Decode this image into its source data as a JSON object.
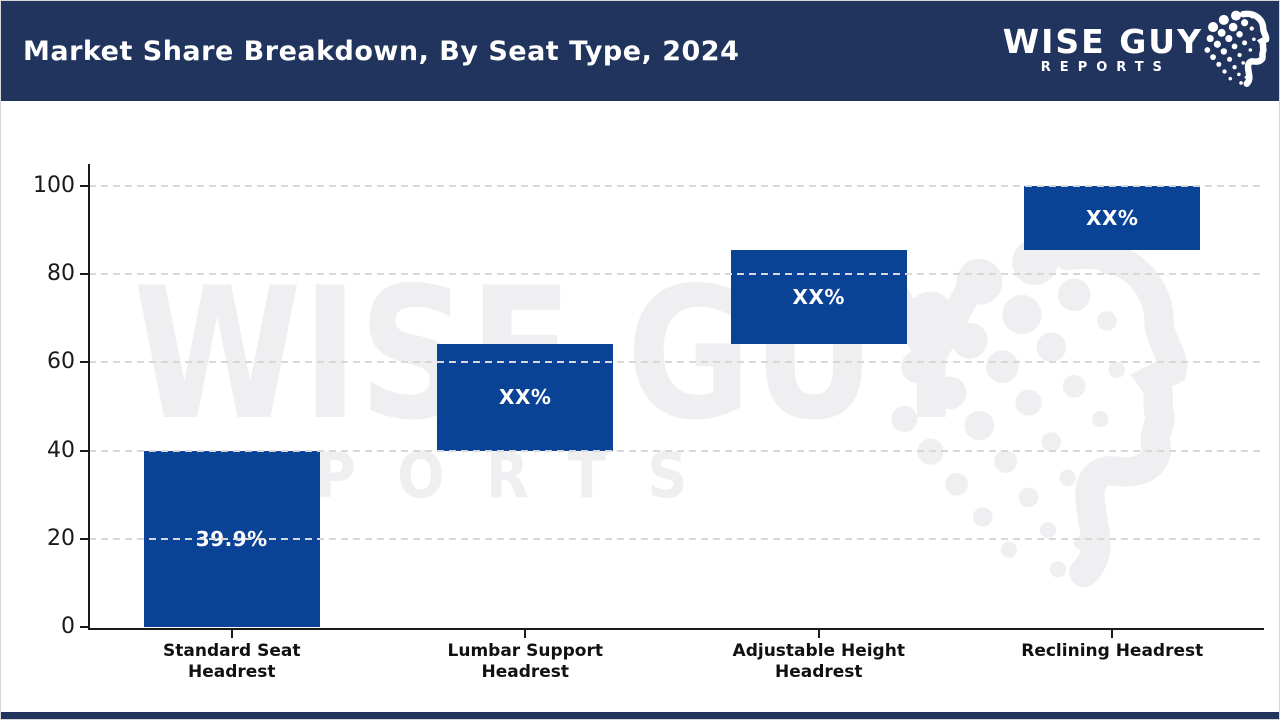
{
  "header": {
    "title": "Market Share Breakdown, By Seat Type, 2024",
    "bg_color": "#21345E",
    "logo": {
      "wordmark": "WISE GUY",
      "subtext": "REPORTS"
    }
  },
  "watermark": {
    "wordmark": "WISE GUY",
    "subtext": "REPORTS"
  },
  "chart_data": {
    "type": "bar",
    "subtype": "waterfall-floating-bars",
    "title": "Market Share Breakdown, By Seat Type, 2024",
    "categories": [
      "Standard Seat\nHeadrest",
      "Lumbar Support\nHeadrest",
      "Adjustable Height\nHeadrest",
      "Reclining Headrest"
    ],
    "series": [
      {
        "name": "Market share (%)",
        "segments": [
          [
            0,
            39.9
          ],
          [
            39.9,
            64.2
          ],
          [
            64.2,
            85.5
          ],
          [
            85.5,
            100
          ]
        ]
      }
    ],
    "bar_labels": [
      "39.9%",
      "XX%",
      "XX%",
      "XX%"
    ],
    "ylim": [
      0,
      100
    ],
    "yticks": [
      0,
      20,
      40,
      60,
      80,
      100
    ],
    "grid": "horizontal-dashed",
    "legend": "none",
    "bar_color": "#0A4296",
    "bar_label_color": "#FFFFFF",
    "axis_color": "#1A1A1A",
    "grid_color": "#D8D8D8"
  }
}
